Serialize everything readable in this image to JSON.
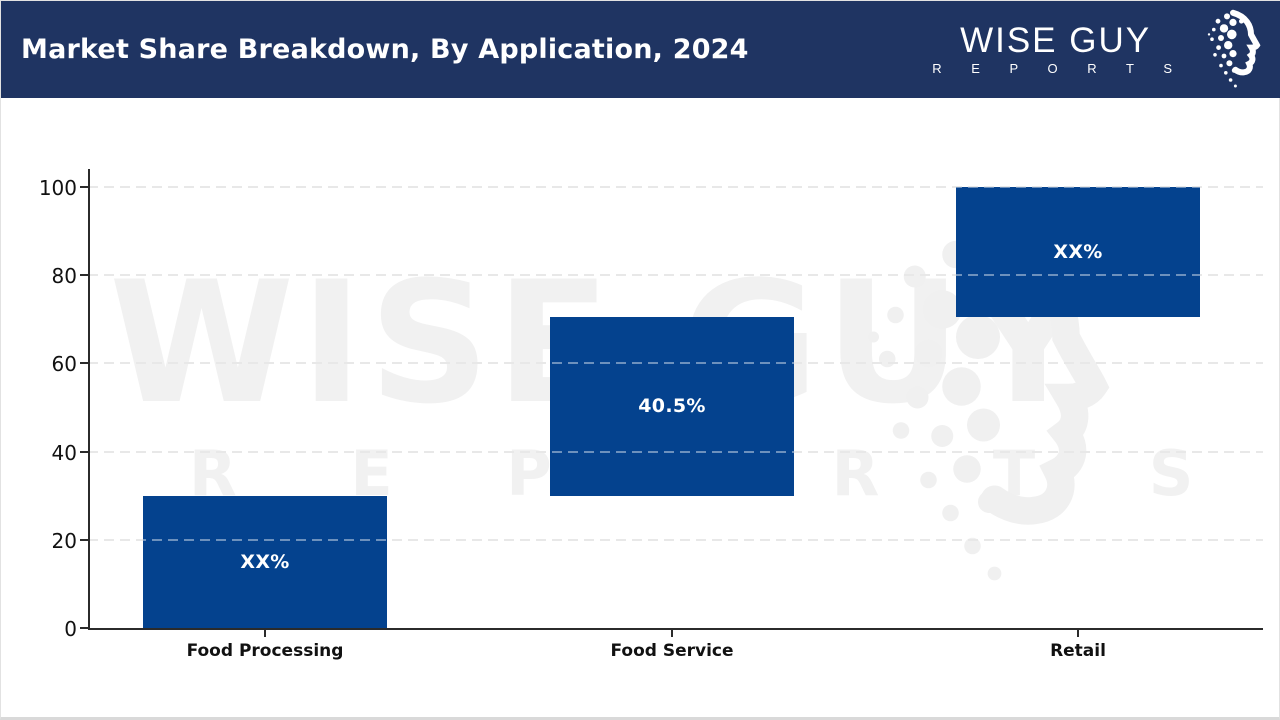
{
  "header": {
    "title": "Market Share Breakdown, By Application, 2024",
    "background_color": "#1f3462",
    "logo": {
      "line1": "WISE GUY",
      "line2": "R E P O R T S"
    }
  },
  "watermark": {
    "line1": "WISE GUY",
    "line2": "R E P O R T S"
  },
  "colors": {
    "header_navy": "#1f3462",
    "bar_blue": "#04428e",
    "gridline_gray": "#d8d8d8",
    "axis_dark": "#2b2b2b",
    "watermark_gray": "#f1f1f1",
    "bar_label_white": "#ffffff"
  },
  "chart_data": {
    "type": "bar",
    "subtype": "floating-waterfall",
    "title": "Market Share Breakdown, By Application, 2024",
    "categories": [
      "Food Processing",
      "Food Service",
      "Retail"
    ],
    "segments": [
      {
        "category": "Food Processing",
        "start": 0,
        "end": 30,
        "label": "XX%"
      },
      {
        "category": "Food Service",
        "start": 30,
        "end": 70.5,
        "label": "40.5%"
      },
      {
        "category": "Retail",
        "start": 70.5,
        "end": 100,
        "label": "XX%"
      }
    ],
    "ylim": [
      0,
      100
    ],
    "yticks": [
      0,
      20,
      40,
      60,
      80,
      100
    ],
    "xlabel": "",
    "ylabel": "",
    "grid": "horizontal-dashed",
    "legend": "none",
    "bar_color": "#04428e",
    "bar_label_color": "#ffffff"
  }
}
